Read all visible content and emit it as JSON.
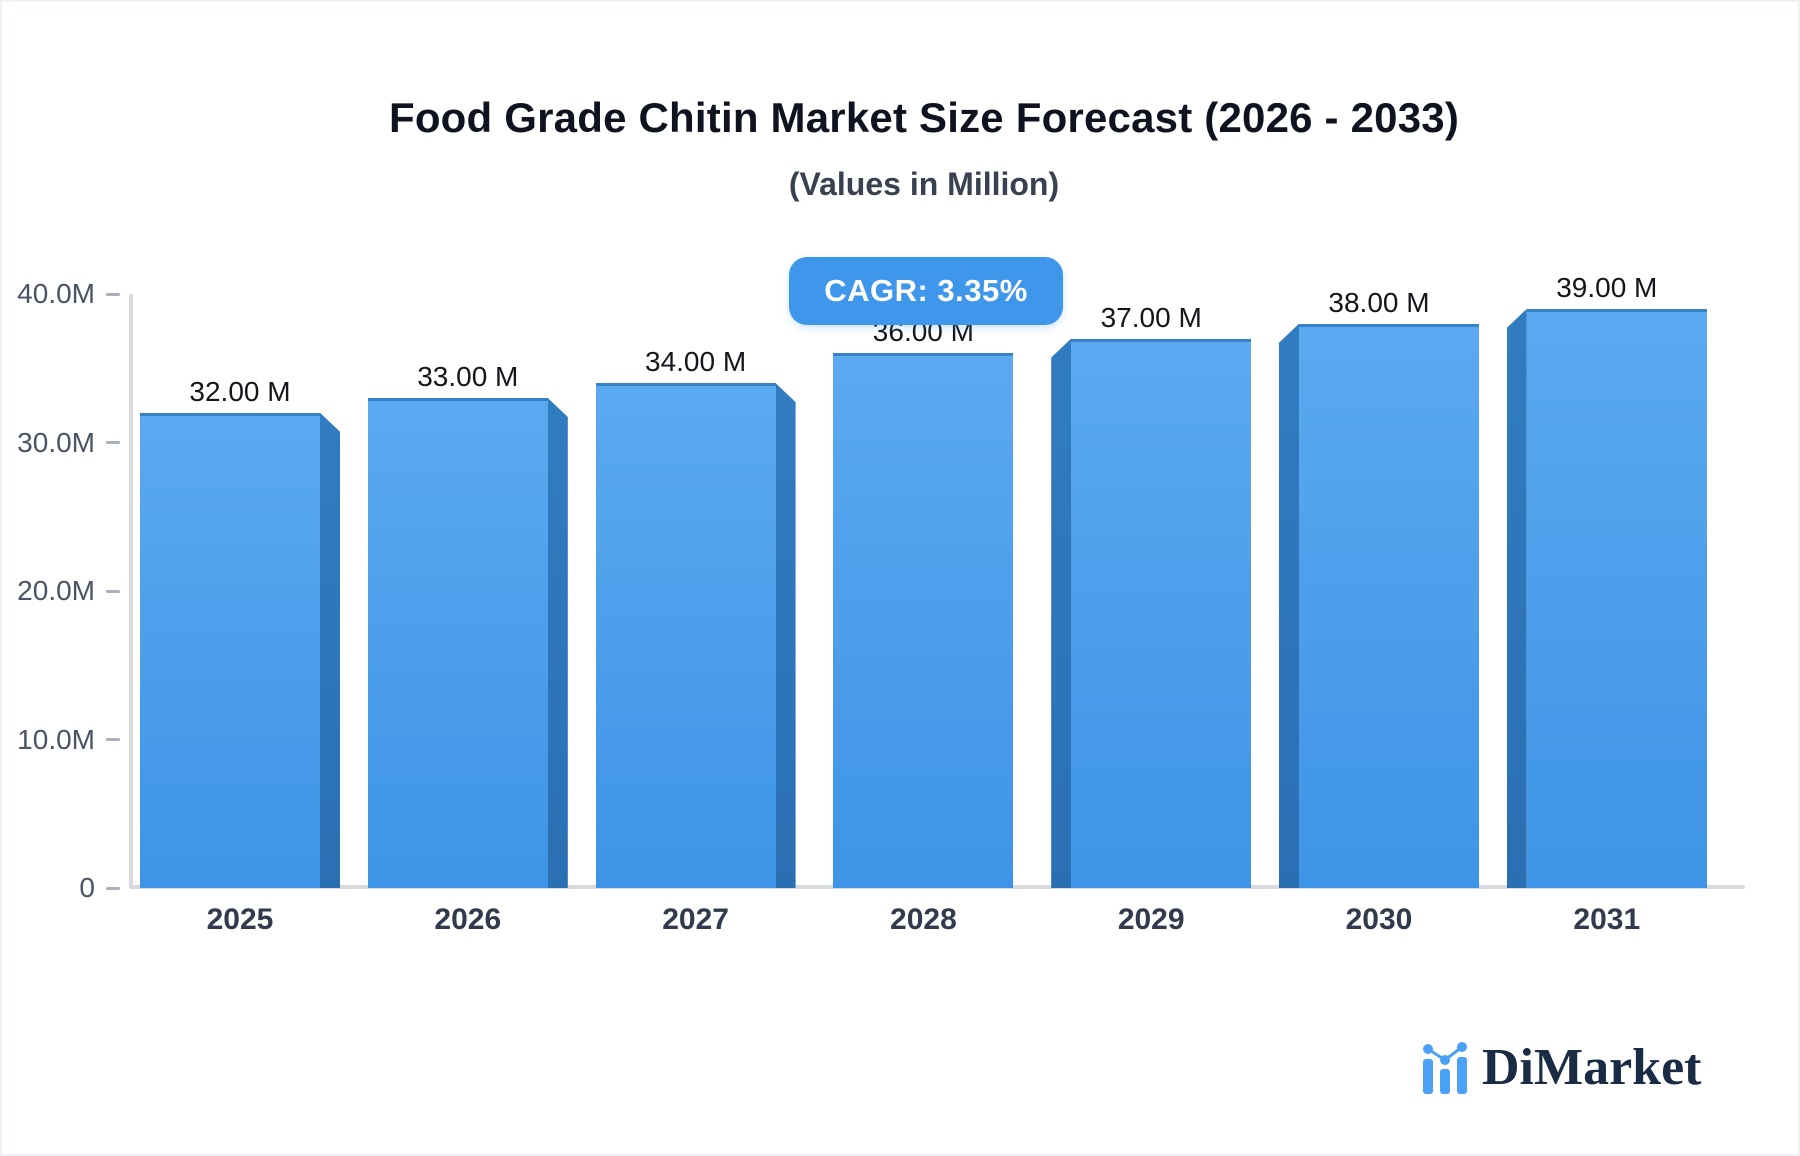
{
  "header": {
    "title": "Food Grade Chitin Market Size Forecast (2026 - 2033)",
    "subtitle": "(Values in Million)"
  },
  "badge": {
    "label": "CAGR: 3.35%",
    "color": "#3e97ea"
  },
  "branding": {
    "name": "DiMarket",
    "icon": "bar-line-chart-icon",
    "icon_color": "#4aa1f5",
    "text_color": "#1a2b45"
  },
  "chart_data": {
    "type": "bar",
    "title": "Food Grade Chitin Market Size Forecast (2026 - 2033)",
    "subtitle": "(Values in Million)",
    "unit": "Million",
    "categories": [
      "2025",
      "2026",
      "2027",
      "2028",
      "2029",
      "2030",
      "2031"
    ],
    "values": [
      32,
      33,
      34,
      36,
      37,
      38,
      39
    ],
    "value_labels": [
      "32.00 M",
      "33.00 M",
      "34.00 M",
      "36.00 M",
      "37.00 M",
      "38.00 M",
      "39.00 M"
    ],
    "xlabel": "",
    "ylabel": "",
    "ylim": [
      0,
      40
    ],
    "yticks": [
      {
        "value": 0,
        "label": "0"
      },
      {
        "value": 10,
        "label": "10.0M"
      },
      {
        "value": 20,
        "label": "20.0M"
      },
      {
        "value": 30,
        "label": "30.0M"
      },
      {
        "value": 40,
        "label": "40.0M"
      }
    ],
    "grid": false,
    "legend": "none",
    "effect": "3d-perspective-center",
    "bar_color": "#459ce9",
    "bar_side_color": "#2e74b8",
    "annotation": "CAGR: 3.35%"
  }
}
